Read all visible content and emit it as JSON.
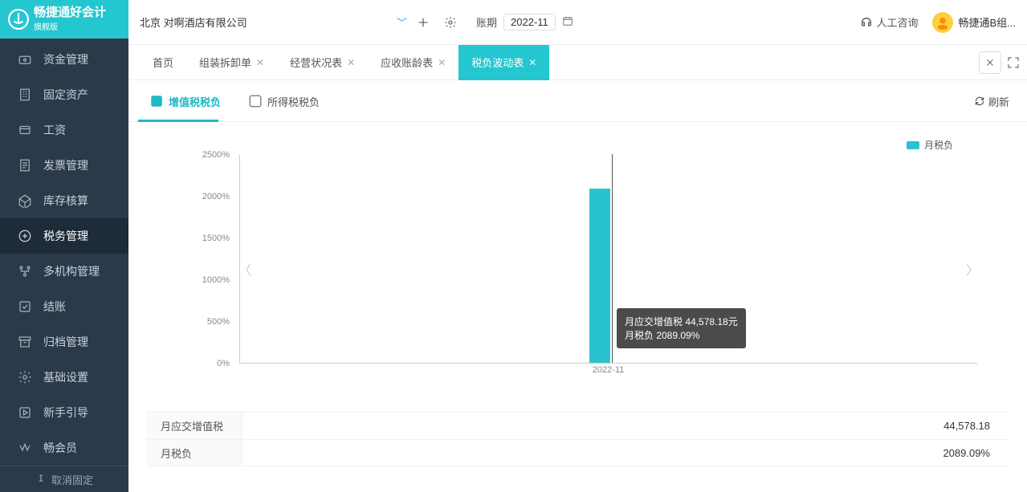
{
  "brand": {
    "name": "畅捷通好会计",
    "edition": "旗舰版"
  },
  "sidebar": {
    "items": [
      {
        "label": "资金管理",
        "icon": "cash"
      },
      {
        "label": "固定资产",
        "icon": "building"
      },
      {
        "label": "工资",
        "icon": "salary"
      },
      {
        "label": "发票管理",
        "icon": "invoice"
      },
      {
        "label": "库存核算",
        "icon": "stock"
      },
      {
        "label": "税务管理",
        "icon": "tax",
        "active": true
      },
      {
        "label": "多机构管理",
        "icon": "org"
      },
      {
        "label": "结账",
        "icon": "close-acct"
      },
      {
        "label": "归档管理",
        "icon": "archive"
      },
      {
        "label": "基础设置",
        "icon": "settings"
      },
      {
        "label": "新手引导",
        "icon": "guide"
      },
      {
        "label": "畅会员",
        "icon": "vip"
      }
    ],
    "bottom": "取消固定"
  },
  "topbar": {
    "company": "北京 对啊酒店有限公司",
    "period_label": "账期",
    "period_value": "2022-11",
    "help": "人工咨询",
    "user": "畅捷通B组..."
  },
  "tabs": [
    {
      "label": "首页",
      "closable": false
    },
    {
      "label": "组装拆卸单",
      "closable": true
    },
    {
      "label": "经营状况表",
      "closable": true
    },
    {
      "label": "应收账龄表",
      "closable": true
    },
    {
      "label": "税负波动表",
      "closable": true,
      "active": true
    }
  ],
  "subtabs": [
    {
      "label": "增值税税负",
      "active": true
    },
    {
      "label": "所得税税负"
    }
  ],
  "refresh_label": "刷新",
  "chart": {
    "type": "bar",
    "legend_label": "月税负",
    "y_ticks": [
      "0%",
      "500%",
      "1000%",
      "1500%",
      "2000%",
      "2500%"
    ],
    "y_max": 2500,
    "x_label": "2022-11",
    "bar_value": 2089.09,
    "bar_color": "#29c3cf",
    "axis_color": "#cccccc",
    "background": "#ffffff",
    "tooltip_line1": "月应交增值税 44,578.18元",
    "tooltip_line2": "月税负 2089.09%"
  },
  "table": {
    "rows": [
      {
        "label": "月应交增值税",
        "value": "44,578.18"
      },
      {
        "label": "月税负",
        "value": "2089.09%"
      }
    ]
  }
}
